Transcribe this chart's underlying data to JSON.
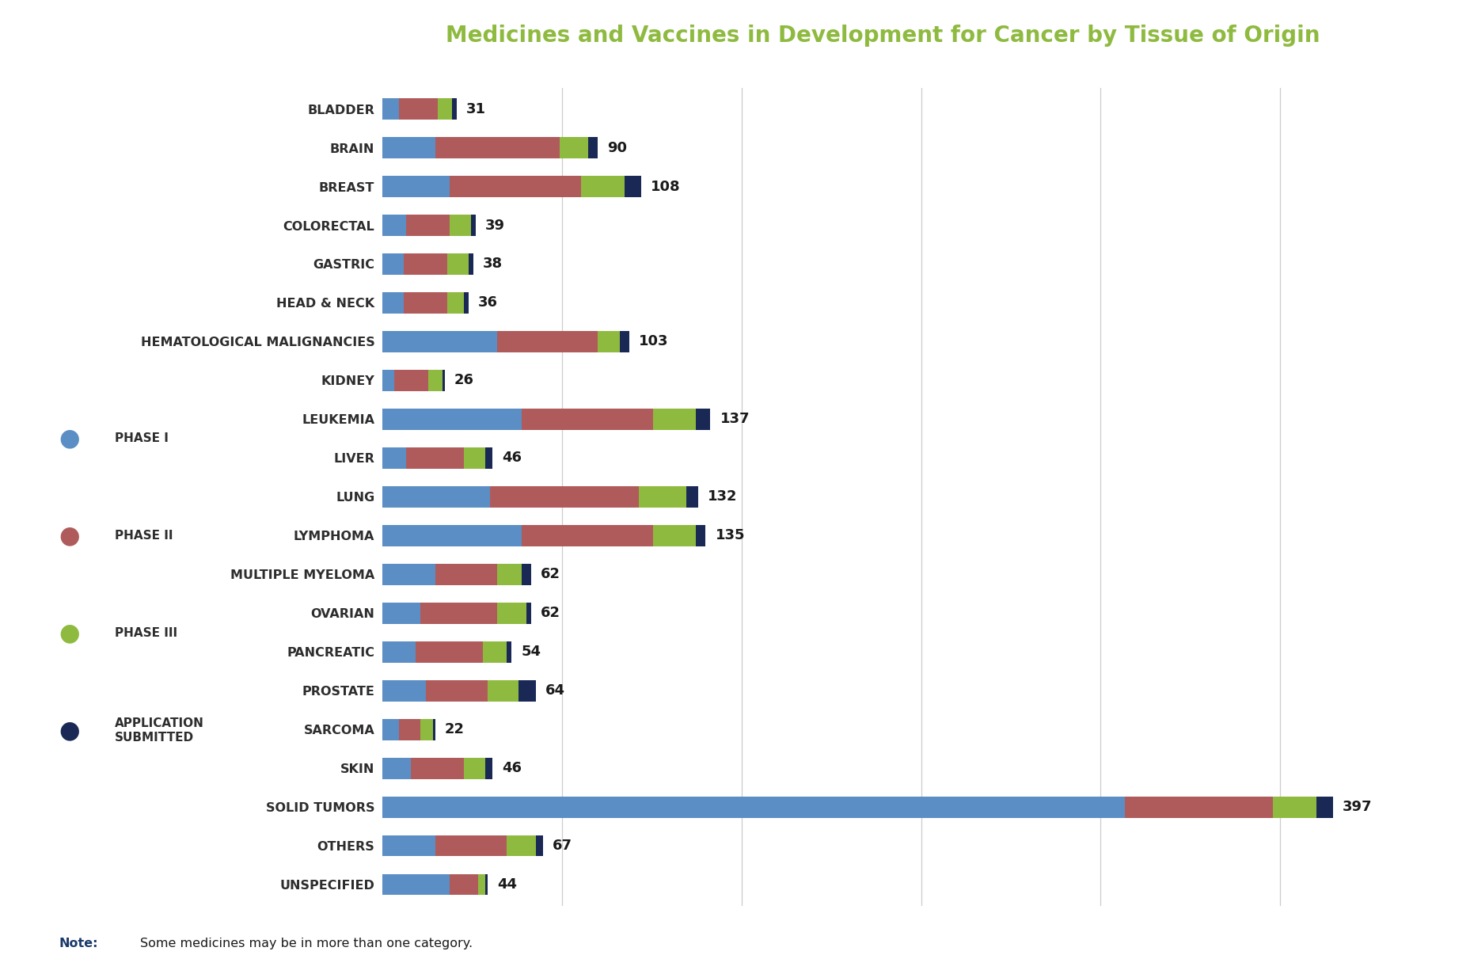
{
  "title": "Medicines and Vaccines in Development for Cancer by Tissue of Origin",
  "categories": [
    "BLADDER",
    "BRAIN",
    "BREAST",
    "COLORECTAL",
    "GASTRIC",
    "HEAD & NECK",
    "HEMATOLOGICAL MALIGNANCIES",
    "KIDNEY",
    "LEUKEMIA",
    "LIVER",
    "LUNG",
    "LYMPHOMA",
    "MULTIPLE MYELOMA",
    "OVARIAN",
    "PANCREATIC",
    "PROSTATE",
    "SARCOMA",
    "SKIN",
    "SOLID TUMORS",
    "OTHERS",
    "UNSPECIFIED"
  ],
  "totals": [
    31,
    90,
    108,
    39,
    38,
    36,
    103,
    26,
    137,
    46,
    132,
    135,
    62,
    62,
    54,
    64,
    22,
    46,
    397,
    67,
    44
  ],
  "phase1": [
    7,
    22,
    28,
    10,
    9,
    9,
    48,
    5,
    58,
    10,
    45,
    58,
    22,
    16,
    14,
    18,
    7,
    12,
    310,
    22,
    28
  ],
  "phase2": [
    16,
    52,
    55,
    18,
    18,
    18,
    42,
    14,
    55,
    24,
    62,
    55,
    26,
    32,
    28,
    26,
    9,
    22,
    62,
    30,
    12
  ],
  "phase3": [
    6,
    12,
    18,
    9,
    9,
    7,
    9,
    6,
    18,
    9,
    20,
    18,
    10,
    12,
    10,
    13,
    5,
    9,
    18,
    12,
    3
  ],
  "app_submitted": [
    2,
    4,
    7,
    2,
    2,
    2,
    4,
    1,
    6,
    3,
    5,
    4,
    4,
    2,
    2,
    7,
    1,
    3,
    7,
    3,
    1
  ],
  "color_phase1": "#5b8ec4",
  "color_phase2": "#b05b5b",
  "color_phase3": "#8fba40",
  "color_app": "#1a2855",
  "title_color": "#8fba40",
  "label_color": "#2d2d2d",
  "note_bold": "Note:",
  "note_text": "Some medicines may be in more than one category.",
  "background_color": "#ffffff",
  "xlim": [
    0,
    430
  ]
}
